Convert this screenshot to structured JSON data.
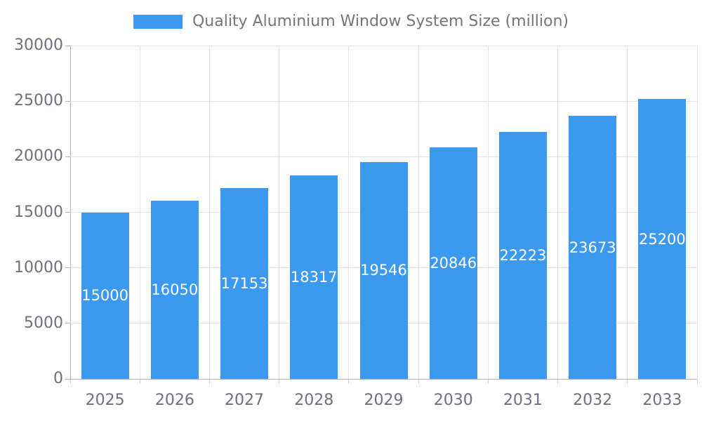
{
  "chart_data": {
    "type": "bar",
    "title": "Quality Aluminium Window System Size (million)",
    "categories": [
      "2025",
      "2026",
      "2027",
      "2028",
      "2029",
      "2030",
      "2031",
      "2032",
      "2033"
    ],
    "values": [
      15000,
      16050,
      17153,
      18317,
      19546,
      20846,
      22223,
      23673,
      25200
    ],
    "value_labels": [
      "15000",
      "16050",
      "17153",
      "18317",
      "19546",
      "20846",
      "22223",
      "23673",
      "25200"
    ],
    "ytick_labels": [
      "0",
      "5000",
      "10000",
      "15000",
      "20000",
      "25000",
      "30000"
    ],
    "ylim": [
      0,
      30000
    ],
    "ytick_step": 5000,
    "xlabel": "",
    "ylabel": "",
    "grid": true,
    "legend_position": "top-center",
    "colors": {
      "bar": "#3b99f0",
      "grid": "#e2e2e2",
      "axis": "#afafaf",
      "x_tick": "#d2d2d2",
      "axis_label": "#6e7079",
      "title": "#757575",
      "value_label": "#ffffff",
      "background": "#ffffff"
    }
  }
}
